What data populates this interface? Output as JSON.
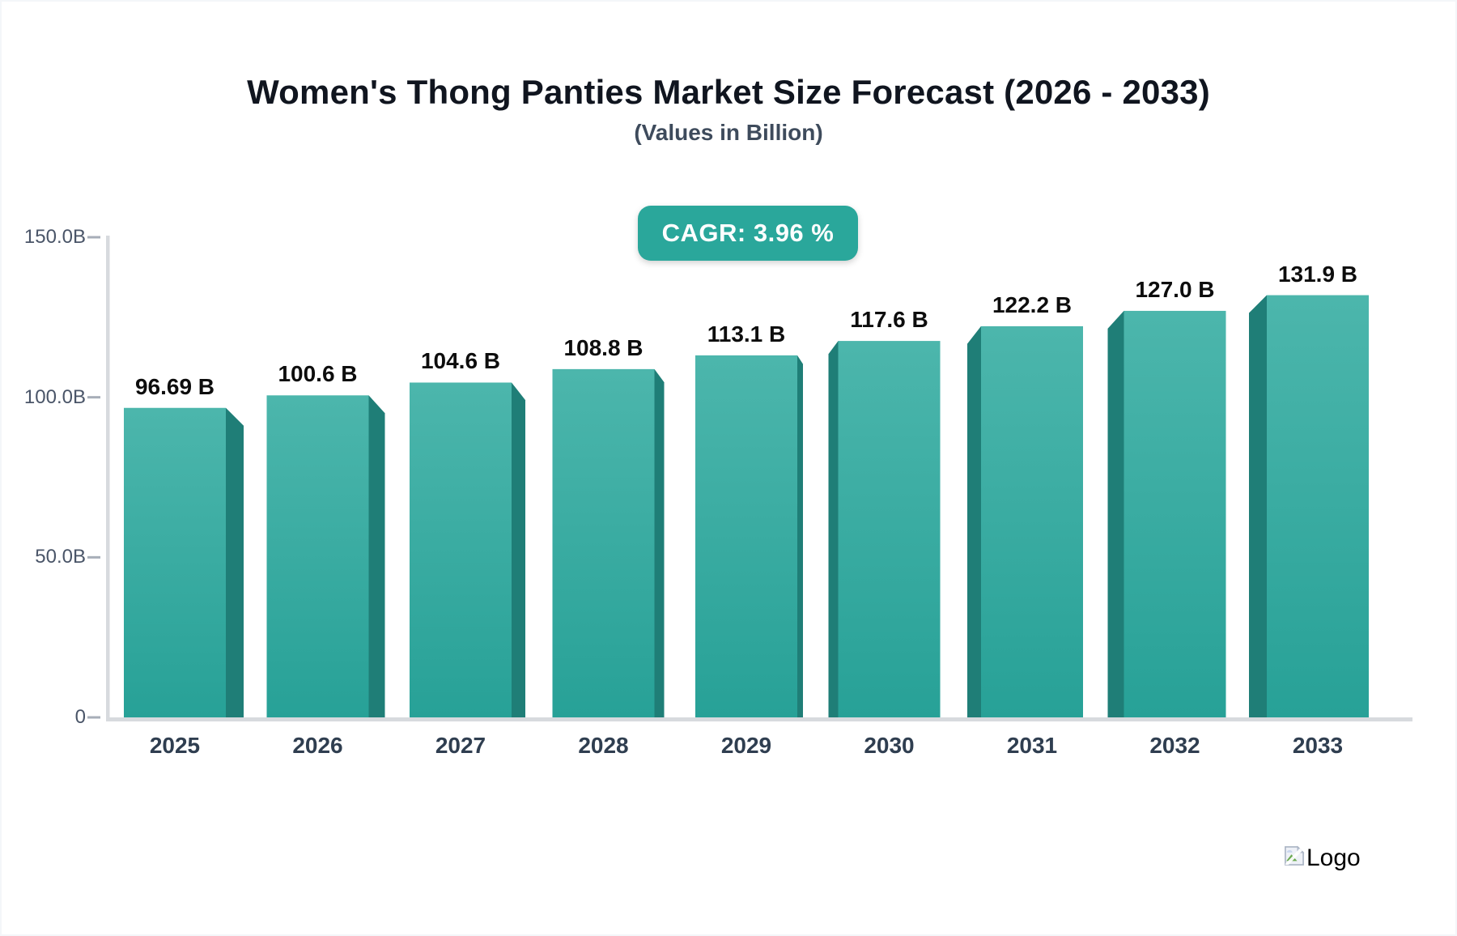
{
  "chart": {
    "title": "Women's Thong Panties Market Size Forecast (2026 - 2033)",
    "subtitle": "(Values in Billion)",
    "cagr_label": "CAGR: 3.96 %"
  },
  "chart_data": {
    "type": "bar",
    "title": "Women's Thong Panties Market Size Forecast (2026 - 2033)",
    "subtitle": "(Values in Billion)",
    "cagr": "3.96 %",
    "unit": "Billion",
    "categories": [
      "2025",
      "2026",
      "2027",
      "2028",
      "2029",
      "2030",
      "2031",
      "2032",
      "2033"
    ],
    "values": [
      96.69,
      100.6,
      104.6,
      108.8,
      113.1,
      117.6,
      122.2,
      127.0,
      131.9
    ],
    "value_labels": [
      "96.69 B",
      "100.6 B",
      "104.6 B",
      "108.8 B",
      "113.1 B",
      "117.6 B",
      "122.2 B",
      "127.0 B",
      "131.9 B"
    ],
    "ylim": [
      0,
      150
    ],
    "yticks": [
      {
        "value": 150,
        "label": "150.0B"
      },
      {
        "value": 100,
        "label": "100.0B"
      },
      {
        "value": 50,
        "label": "50.0B"
      },
      {
        "value": 0,
        "label": "0"
      }
    ],
    "grid": false,
    "legend": false,
    "bar_style": "3d",
    "colors": {
      "bar_top": "#4cb6ac",
      "bar_bottom": "#27a197",
      "bar_side": "#1f7e77",
      "badge": "#2aa79b",
      "axis": "#d7dade",
      "tick": "#a7aeb8",
      "ytick_text": "#4a5568",
      "xtick_text": "#2f3e50",
      "value_text": "#0d0d0d"
    }
  },
  "footer": {
    "logo_text": "Logo",
    "logo_icon": "broken-image-icon"
  }
}
